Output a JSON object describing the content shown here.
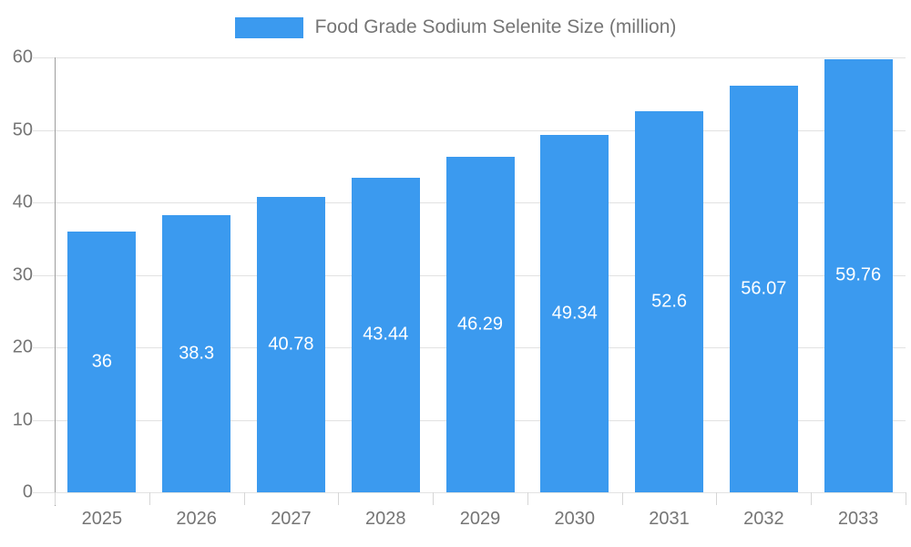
{
  "legend": {
    "label": "Food Grade Sodium Selenite Size (million)"
  },
  "colors": {
    "bar": "#3B9AEF",
    "grid": "#e2e2e2",
    "axis": "#9e9e9e",
    "tick_label": "#757575",
    "bar_label": "#ffffff"
  },
  "chart_data": {
    "type": "bar",
    "title": "Food Grade Sodium Selenite Size (million)",
    "categories": [
      "2025",
      "2026",
      "2027",
      "2028",
      "2029",
      "2030",
      "2031",
      "2032",
      "2033"
    ],
    "values": [
      36,
      38.3,
      40.78,
      43.44,
      46.29,
      49.34,
      52.6,
      56.07,
      59.76
    ],
    "value_labels": [
      "36",
      "38.3",
      "40.78",
      "43.44",
      "46.29",
      "49.34",
      "52.6",
      "56.07",
      "59.76"
    ],
    "series": [
      {
        "name": "Food Grade Sodium Selenite Size (million)",
        "values": [
          36,
          38.3,
          40.78,
          43.44,
          46.29,
          49.34,
          52.6,
          56.07,
          59.76
        ]
      }
    ],
    "xlabel": "",
    "ylabel": "",
    "ylim": [
      0,
      60
    ],
    "yticks": [
      0,
      10,
      20,
      30,
      40,
      50,
      60
    ],
    "grid": true,
    "legend_position": "top",
    "bar_label_position": "inside-middle"
  }
}
